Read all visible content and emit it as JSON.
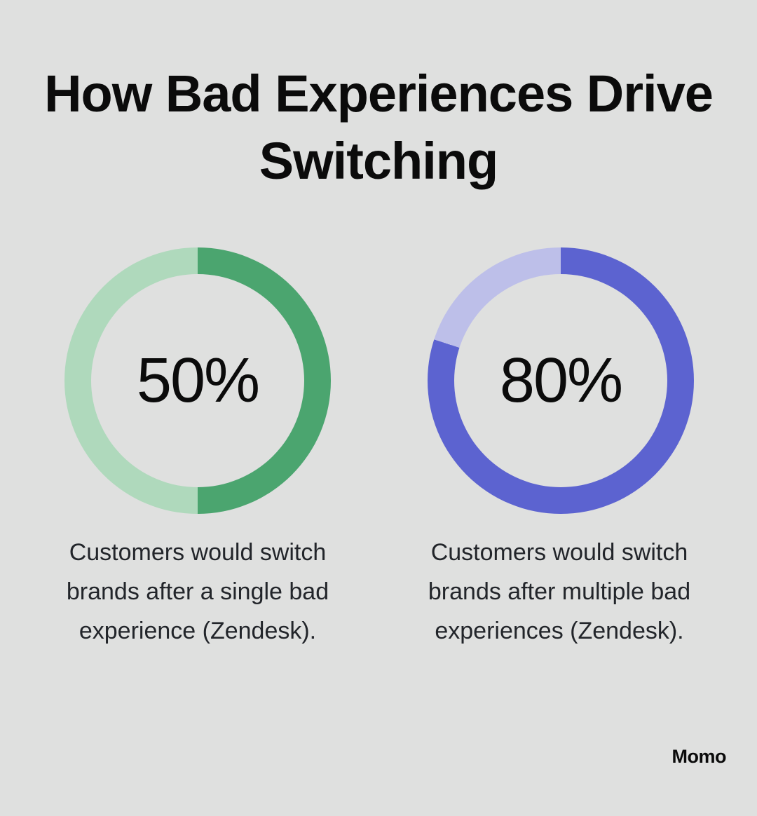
{
  "header": {
    "title": "How Bad Experiences Drive\nSwitching"
  },
  "chart_data": [
    {
      "type": "pie",
      "style": "donut",
      "label": "50%",
      "value_pct": 50,
      "slices": [
        {
          "name": "would switch after a single bad experience",
          "value": 50,
          "color": "#4ba56f"
        },
        {
          "name": "remainder",
          "value": 50,
          "color": "#afd9bc"
        }
      ],
      "caption": "Customers would switch\nbrands after a single bad\nexperience (Zendesk)."
    },
    {
      "type": "pie",
      "style": "donut",
      "label": "80%",
      "value_pct": 80,
      "slices": [
        {
          "name": "would switch after multiple bad experiences",
          "value": 80,
          "color": "#5c63d0"
        },
        {
          "name": "remainder",
          "value": 20,
          "color": "#bdbfe9"
        }
      ],
      "caption": "Customers would switch\nbrands after multiple bad\nexperiences (Zendesk)."
    }
  ],
  "footer": {
    "brand": "Momo"
  },
  "colors": {
    "background": "#dfe0df",
    "title_text": "#0b0b0b",
    "caption_text": "#22252a"
  }
}
